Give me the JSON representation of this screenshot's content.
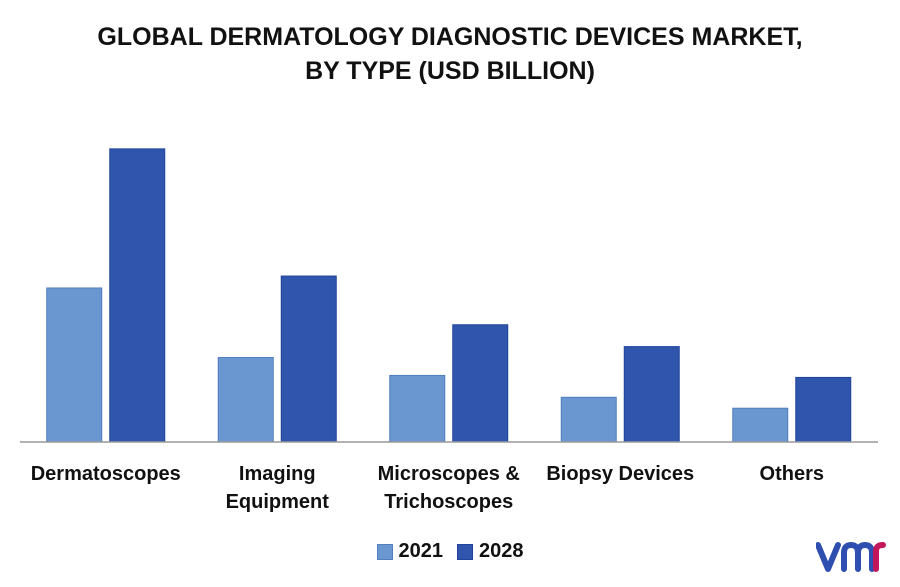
{
  "title_line1": "GLOBAL DERMATOLOGY DIAGNOSTIC DEVICES MARKET,",
  "title_line2": "BY TYPE (USD BILLION)",
  "chart_data": {
    "type": "bar",
    "title": "GLOBAL DERMATOLOGY DIAGNOSTIC DEVICES MARKET, BY TYPE (USD BILLION)",
    "categories": [
      [
        "Dermatoscopes"
      ],
      [
        "Imaging",
        "Equipment"
      ],
      [
        "Microscopes &",
        "Trichoscopes"
      ],
      [
        "Biopsy Devices"
      ],
      [
        "Others"
      ]
    ],
    "series": [
      {
        "name": "2021",
        "color": "#6a97cf",
        "values": [
          1.55,
          0.85,
          0.67,
          0.45,
          0.34
        ]
      },
      {
        "name": "2028",
        "color": "#2f55ad",
        "values": [
          2.95,
          1.67,
          1.18,
          0.96,
          0.65
        ]
      }
    ],
    "ylim": [
      0,
      3.2
    ],
    "grid": false,
    "legend_position": "bottom"
  },
  "legend": {
    "label_2021": "2021",
    "label_2028": "2028"
  },
  "logo_text": "vmr"
}
